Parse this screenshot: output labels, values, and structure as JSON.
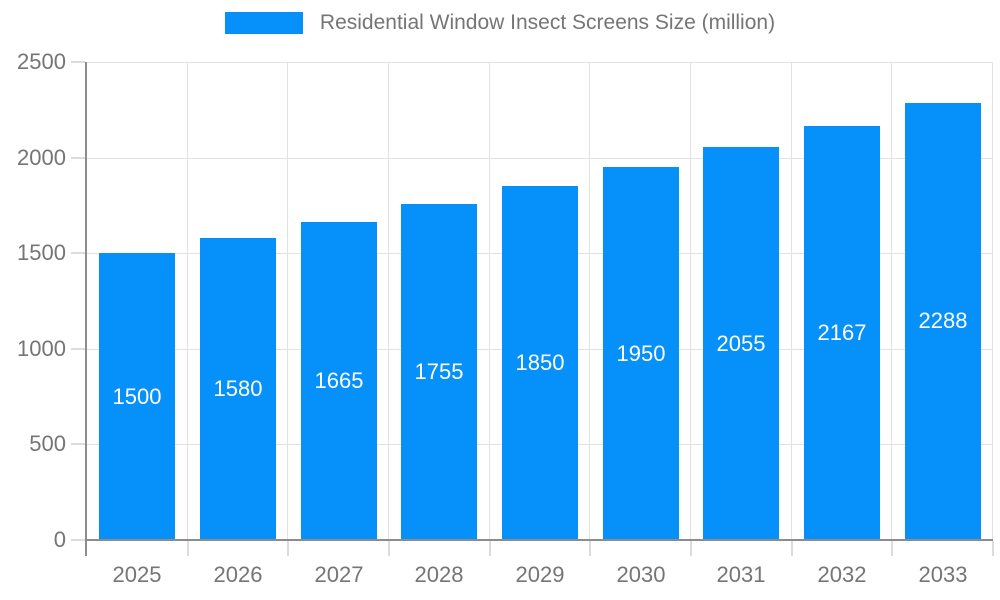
{
  "chart_data": {
    "type": "bar",
    "title": "Residential Window Insect Screens Size (million)",
    "categories": [
      "2025",
      "2026",
      "2027",
      "2028",
      "2029",
      "2030",
      "2031",
      "2032",
      "2033"
    ],
    "values": [
      1500,
      1580,
      1665,
      1755,
      1850,
      1950,
      2055,
      2167,
      2288
    ],
    "xlabel": "",
    "ylabel": "",
    "ylim": [
      0,
      2500
    ],
    "yticks": [
      0,
      500,
      1000,
      1500,
      2000,
      2500
    ],
    "grid": true,
    "legend_position": "top-center",
    "bar_color": "#0690FA",
    "bar_label_color": "#ffffff",
    "axis_text_color": "#757575",
    "axis_line_color": "#8c8c8c",
    "gridline_color": "#e2e2e2"
  }
}
